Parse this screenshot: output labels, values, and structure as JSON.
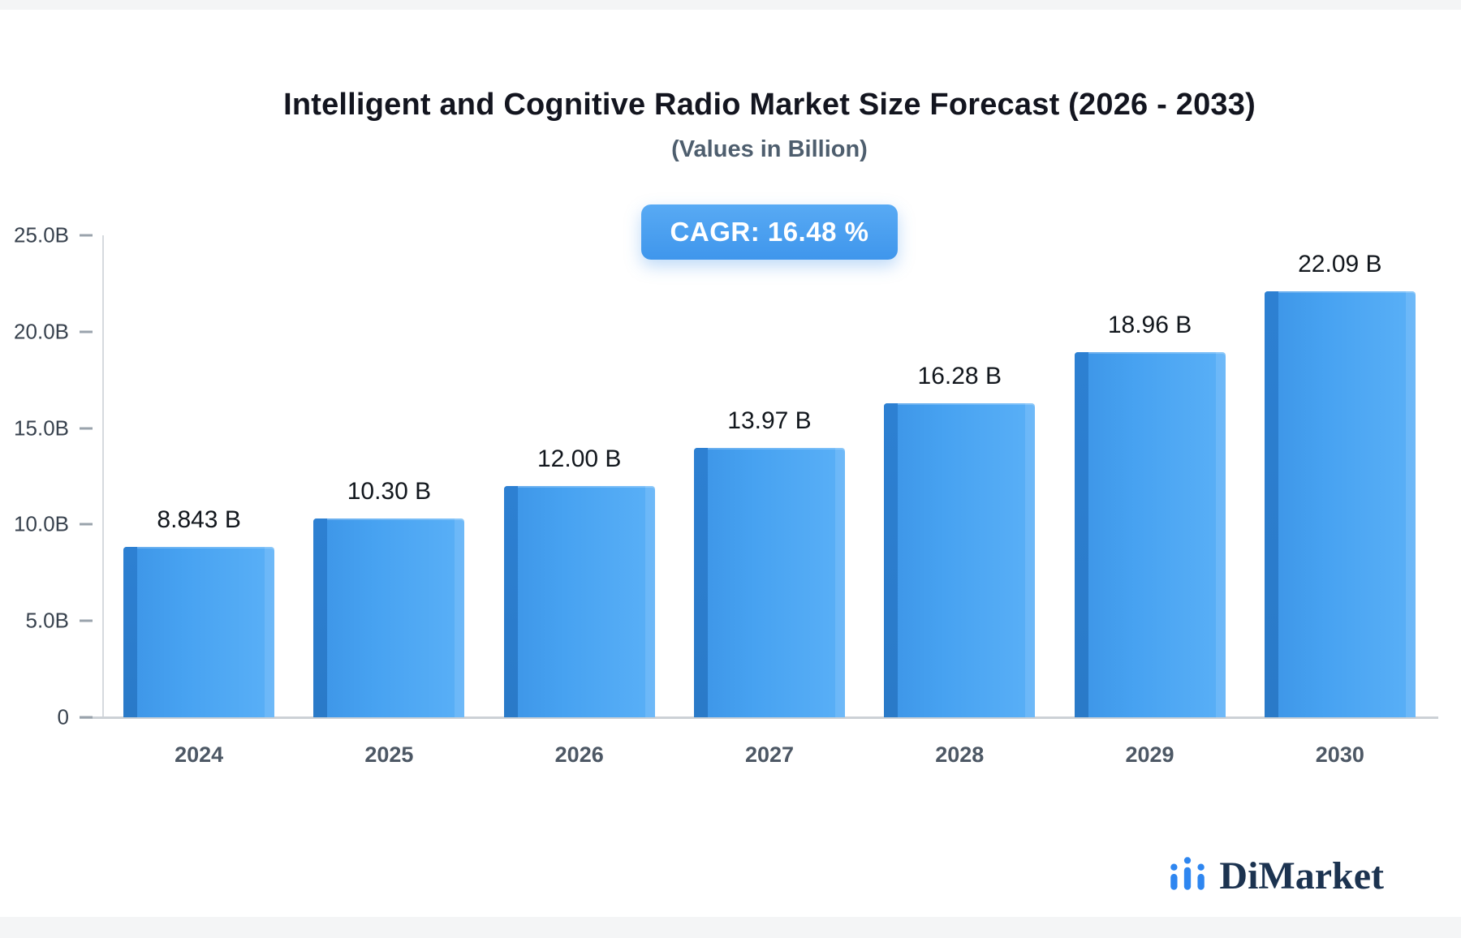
{
  "page": {
    "title": "Intelligent and Cognitive Radio Market Size Forecast (2026 - 2033)",
    "subtitle": "(Values in Billion)",
    "cagr_badge": "CAGR: 16.48 %"
  },
  "chart_data": {
    "type": "bar",
    "title": "Intelligent and Cognitive Radio Market Size Forecast (2026 - 2033)",
    "subtitle": "(Values in Billion)",
    "cagr_percent": 16.48,
    "unit": "Billion",
    "categories": [
      "2024",
      "2025",
      "2026",
      "2027",
      "2028",
      "2029",
      "2030"
    ],
    "values": [
      8.843,
      10.3,
      12.0,
      13.97,
      16.28,
      18.96,
      22.09
    ],
    "value_labels": [
      "8.843 B",
      "10.30 B",
      "12.00 B",
      "13.97 B",
      "16.28 B",
      "18.96 B",
      "22.09 B"
    ],
    "ylim": [
      0,
      25
    ],
    "y_ticks": [
      {
        "value": 0,
        "label": "0"
      },
      {
        "value": 5,
        "label": "5.0B"
      },
      {
        "value": 10,
        "label": "10.0B"
      },
      {
        "value": 15,
        "label": "15.0B"
      },
      {
        "value": 20,
        "label": "20.0B"
      },
      {
        "value": 25,
        "label": "25.0B"
      }
    ],
    "grid": false,
    "legend": false,
    "colors": {
      "bar_front": "#47a2f1",
      "bar_side": "#2b7cc9",
      "badge_bg": "#479cef",
      "axis_line": "#d2d7db",
      "title_text": "#13151f",
      "subtitle_text": "#4e5e6e"
    }
  },
  "branding": {
    "logo_text": "DiMarket",
    "logo_icon": "bar-chart-logo-icon",
    "logo_text_color": "#1c3350",
    "logo_icon_color": "#2e86f0"
  }
}
